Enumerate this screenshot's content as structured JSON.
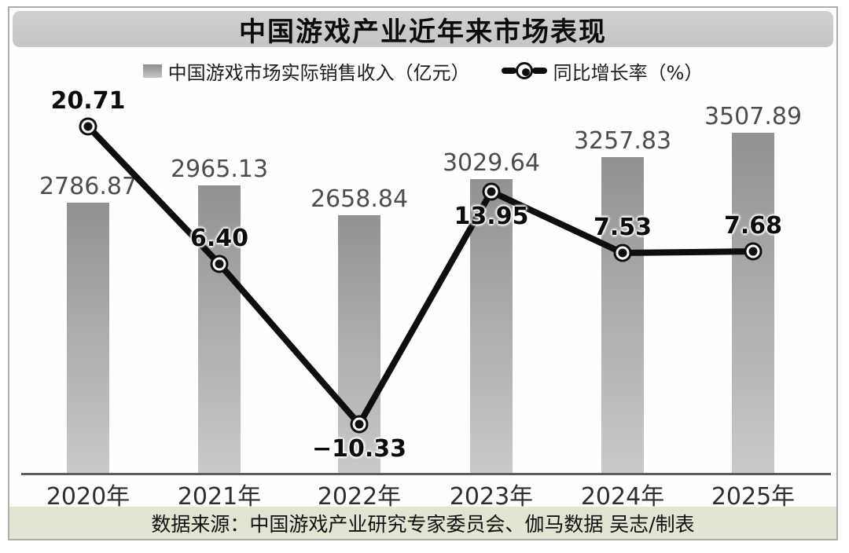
{
  "title": "中国游戏产业近年来市场表现",
  "legend": {
    "bar_label": "中国游戏市场实际销售收入（亿元）",
    "line_label": "同比增长率（%）"
  },
  "source": "数据来源：中国游戏产业研究专家委员会、伽马数据 吴志/制表",
  "colors": {
    "title_bar_bg": "#c9c9c9",
    "bar_gradient_top": "#929292",
    "bar_gradient_bottom": "#c9c9c9",
    "line": "#0e0e0e",
    "axis": "#5c5c5c",
    "footer_bg": "#e3e4d2",
    "bar_label_text": "#4d4d4d",
    "line_label_text": "#0c0c0c"
  },
  "chart_data": {
    "type": "combo",
    "title": "中国游戏产业近年来市场表现",
    "categories": [
      "2020年",
      "2021年",
      "2022年",
      "2023年",
      "2024年",
      "2025年"
    ],
    "series": [
      {
        "name": "中国游戏市场实际销售收入（亿元）",
        "type": "bar",
        "values": [
          2786.87,
          2965.13,
          2658.84,
          3029.64,
          3257.83,
          3507.89
        ]
      },
      {
        "name": "同比增长率（%）",
        "type": "line",
        "values": [
          20.71,
          6.4,
          -10.33,
          13.95,
          7.53,
          7.68
        ]
      }
    ],
    "bar_value_labels": [
      "2786.87",
      "2965.13",
      "2658.84",
      "3029.64",
      "3257.83",
      "3507.89"
    ],
    "line_value_labels": [
      "20.71",
      "6.40",
      "−10.33",
      "13.95",
      "7.53",
      "7.68"
    ],
    "line_label_side": [
      "above",
      "above",
      "below",
      "below",
      "above",
      "above"
    ],
    "legend_position": "top",
    "grid": false,
    "bar_axis_unit": "亿元",
    "line_axis_unit": "%"
  }
}
